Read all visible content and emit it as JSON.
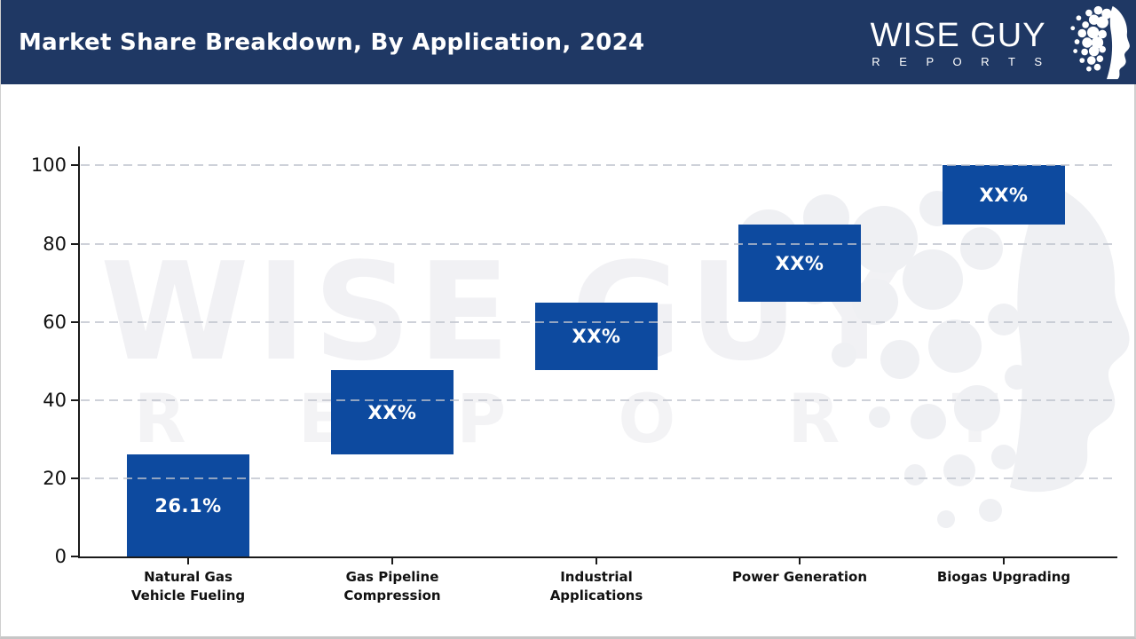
{
  "header": {
    "title": "Market Share Breakdown, By Application, 2024",
    "logo": {
      "name": "WISE GUY",
      "sub": "R E P O R T S"
    }
  },
  "watermark": {
    "line1": "WISE GUY",
    "line2": "R E P O R T S"
  },
  "colors": {
    "header_bg": "#1f3864",
    "bar": "#0d4a9f",
    "bar_label": "#ffffff",
    "grid": "#d9d9d9",
    "axis": "#1a1a1a",
    "watermark": "#f1f1f4"
  },
  "chart_data": {
    "type": "bar",
    "subtype": "waterfall-floating-bars",
    "title": "Market Share Breakdown, By Application, 2024",
    "categories": [
      "Natural Gas Vehicle Fueling",
      "Gas Pipeline Compression",
      "Industrial Applications",
      "Power Generation",
      "Biogas Upgrading"
    ],
    "category_label_lines": [
      [
        "Natural Gas",
        "Vehicle Fueling"
      ],
      [
        "Gas Pipeline",
        "Compression"
      ],
      [
        "Industrial",
        "Applications"
      ],
      [
        "Power Generation"
      ],
      [
        "Biogas Upgrading"
      ]
    ],
    "segments": [
      {
        "category": "Natural Gas Vehicle Fueling",
        "start": 0,
        "end": 26.1,
        "span_estimate": 26.1,
        "label": "26.1%"
      },
      {
        "category": "Gas Pipeline Compression",
        "start": 26.1,
        "end": 47.7,
        "span_estimate": 21.6,
        "label": "XX%"
      },
      {
        "category": "Industrial Applications",
        "start": 47.7,
        "end": 65.0,
        "span_estimate": 17.3,
        "label": "XX%"
      },
      {
        "category": "Power Generation",
        "start": 65.0,
        "end": 84.8,
        "span_estimate": 19.8,
        "label": "XX%"
      },
      {
        "category": "Biogas Upgrading",
        "start": 84.8,
        "end": 100.0,
        "span_estimate": 15.2,
        "label": "XX%"
      }
    ],
    "ylim": [
      0,
      105
    ],
    "yticks": [
      0,
      20,
      40,
      60,
      80,
      100
    ],
    "grid": "horizontal-dashed",
    "legend": "none"
  }
}
